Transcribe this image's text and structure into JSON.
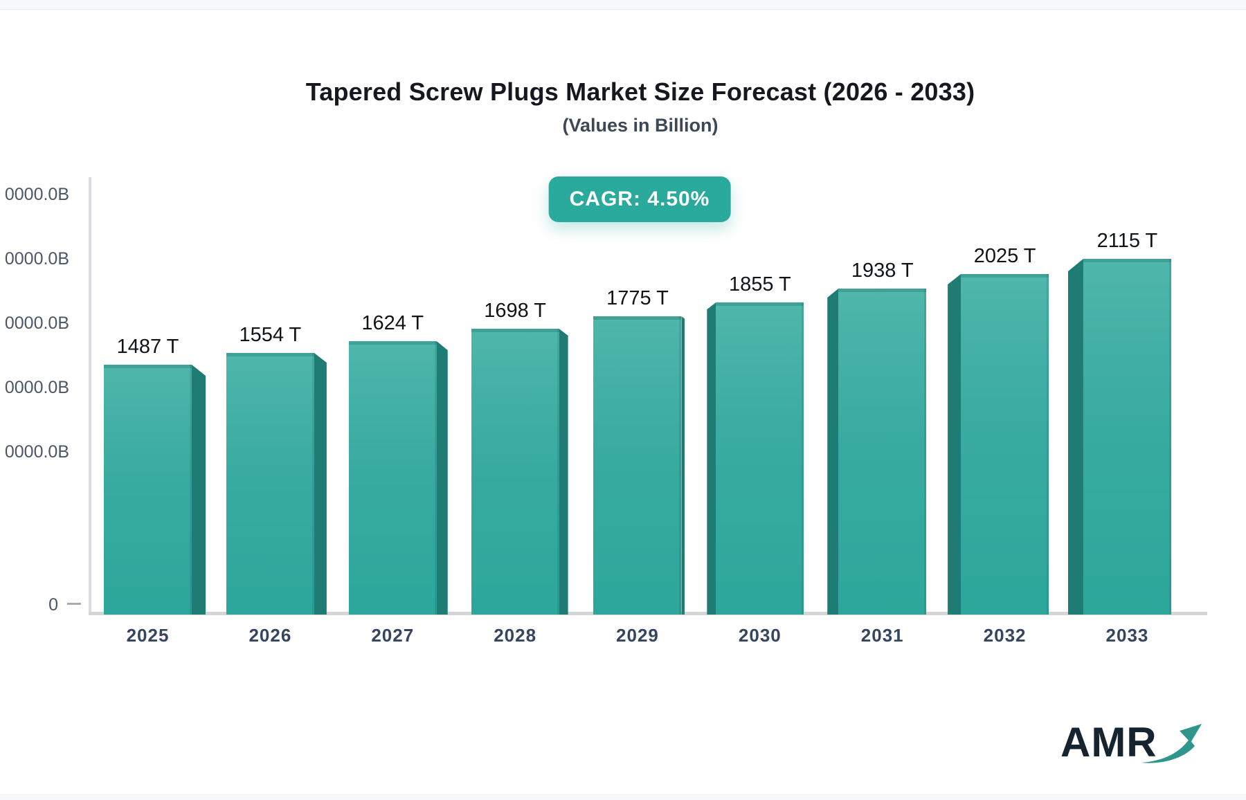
{
  "header": {
    "title": "Tapered Screw Plugs Market Size Forecast (2026 - 2033)",
    "subtitle": "(Values in Billion)",
    "cagr_label": "CAGR: 4.50%"
  },
  "chart_data": {
    "type": "bar",
    "title": "Tapered Screw Plugs Market Size Forecast (2026 - 2033)",
    "subtitle": "(Values in Billion)",
    "cagr_percent": "4.50%",
    "categories": [
      "2025",
      "2026",
      "2027",
      "2028",
      "2029",
      "2030",
      "2031",
      "2032",
      "2033"
    ],
    "values": [
      1487,
      1554,
      1624,
      1698,
      1775,
      1855,
      1938,
      2025,
      2115
    ],
    "value_labels": [
      "1487 T",
      "1554 T",
      "1624 T",
      "1698 T",
      "1775 T",
      "1855 T",
      "1938 T",
      "2025 T",
      "2115 T"
    ],
    "unit_suffix": "T",
    "xlabel": "",
    "ylabel": "",
    "y_axis": {
      "tick_labels": [
        "0000.0B",
        "0000.0B",
        "0000.0B",
        "0000.0B",
        "0000.0B"
      ],
      "zero_label": "0"
    },
    "grid": "off",
    "legend": "none",
    "bar_color": "#2faba0",
    "bar_side_color": "#1e7c74"
  },
  "branding": {
    "logo_text": "AMR"
  },
  "colors": {
    "accent_teal": "#2aa99d",
    "badge_text": "#ffffff",
    "title_text": "#15181e",
    "axis_text": "#4b5666",
    "category_text": "#36455f"
  }
}
